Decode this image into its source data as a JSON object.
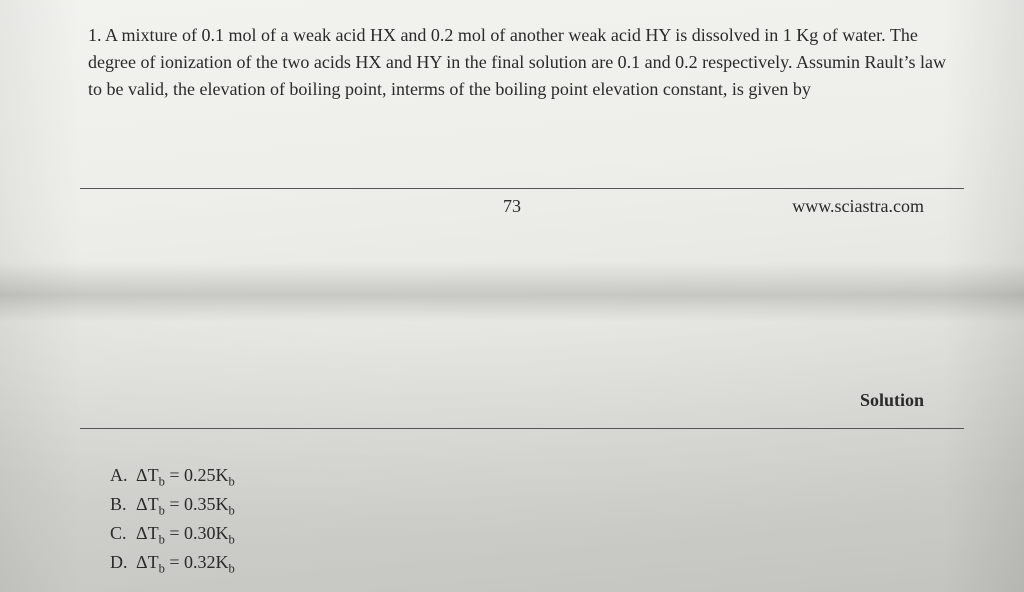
{
  "question": {
    "number": "1.",
    "text": "A mixture of 0.1 mol of a weak acid HX and 0.2 mol of another weak acid HY is dissolved in 1 Kg of water. The degree of ionization of the two acids HX and HY in the final solution are 0.1 and 0.2 respectively. Assumin Rault’s law to be valid, the elevation of boiling point, interms of the boiling point elevation constant, is given by"
  },
  "page_number": "73",
  "website": "www.sciastra.com",
  "solution_label": "Solution",
  "options": [
    {
      "letter": "A.",
      "lhs_base": "ΔT",
      "lhs_sub": "b",
      "eq": " = ",
      "coef": "0.25",
      "rhs_base": "K",
      "rhs_sub": "b"
    },
    {
      "letter": "B.",
      "lhs_base": "ΔT",
      "lhs_sub": "b",
      "eq": " = ",
      "coef": "0.35",
      "rhs_base": "K",
      "rhs_sub": "b"
    },
    {
      "letter": "C.",
      "lhs_base": "ΔT",
      "lhs_sub": "b",
      "eq": " = ",
      "coef": "0.30",
      "rhs_base": "K",
      "rhs_sub": "b"
    },
    {
      "letter": "D.",
      "lhs_base": "ΔT",
      "lhs_sub": "b",
      "eq": " = ",
      "coef": "0.32",
      "rhs_base": "K",
      "rhs_sub": "b"
    }
  ],
  "colors": {
    "text": "#2a2a2a",
    "rule": "#555555",
    "paper_top": "#f2f2ef",
    "paper_bottom": "#cfcfcb"
  },
  "typography": {
    "family": "Times New Roman",
    "body_pt": 18,
    "line_height": 1.5
  }
}
